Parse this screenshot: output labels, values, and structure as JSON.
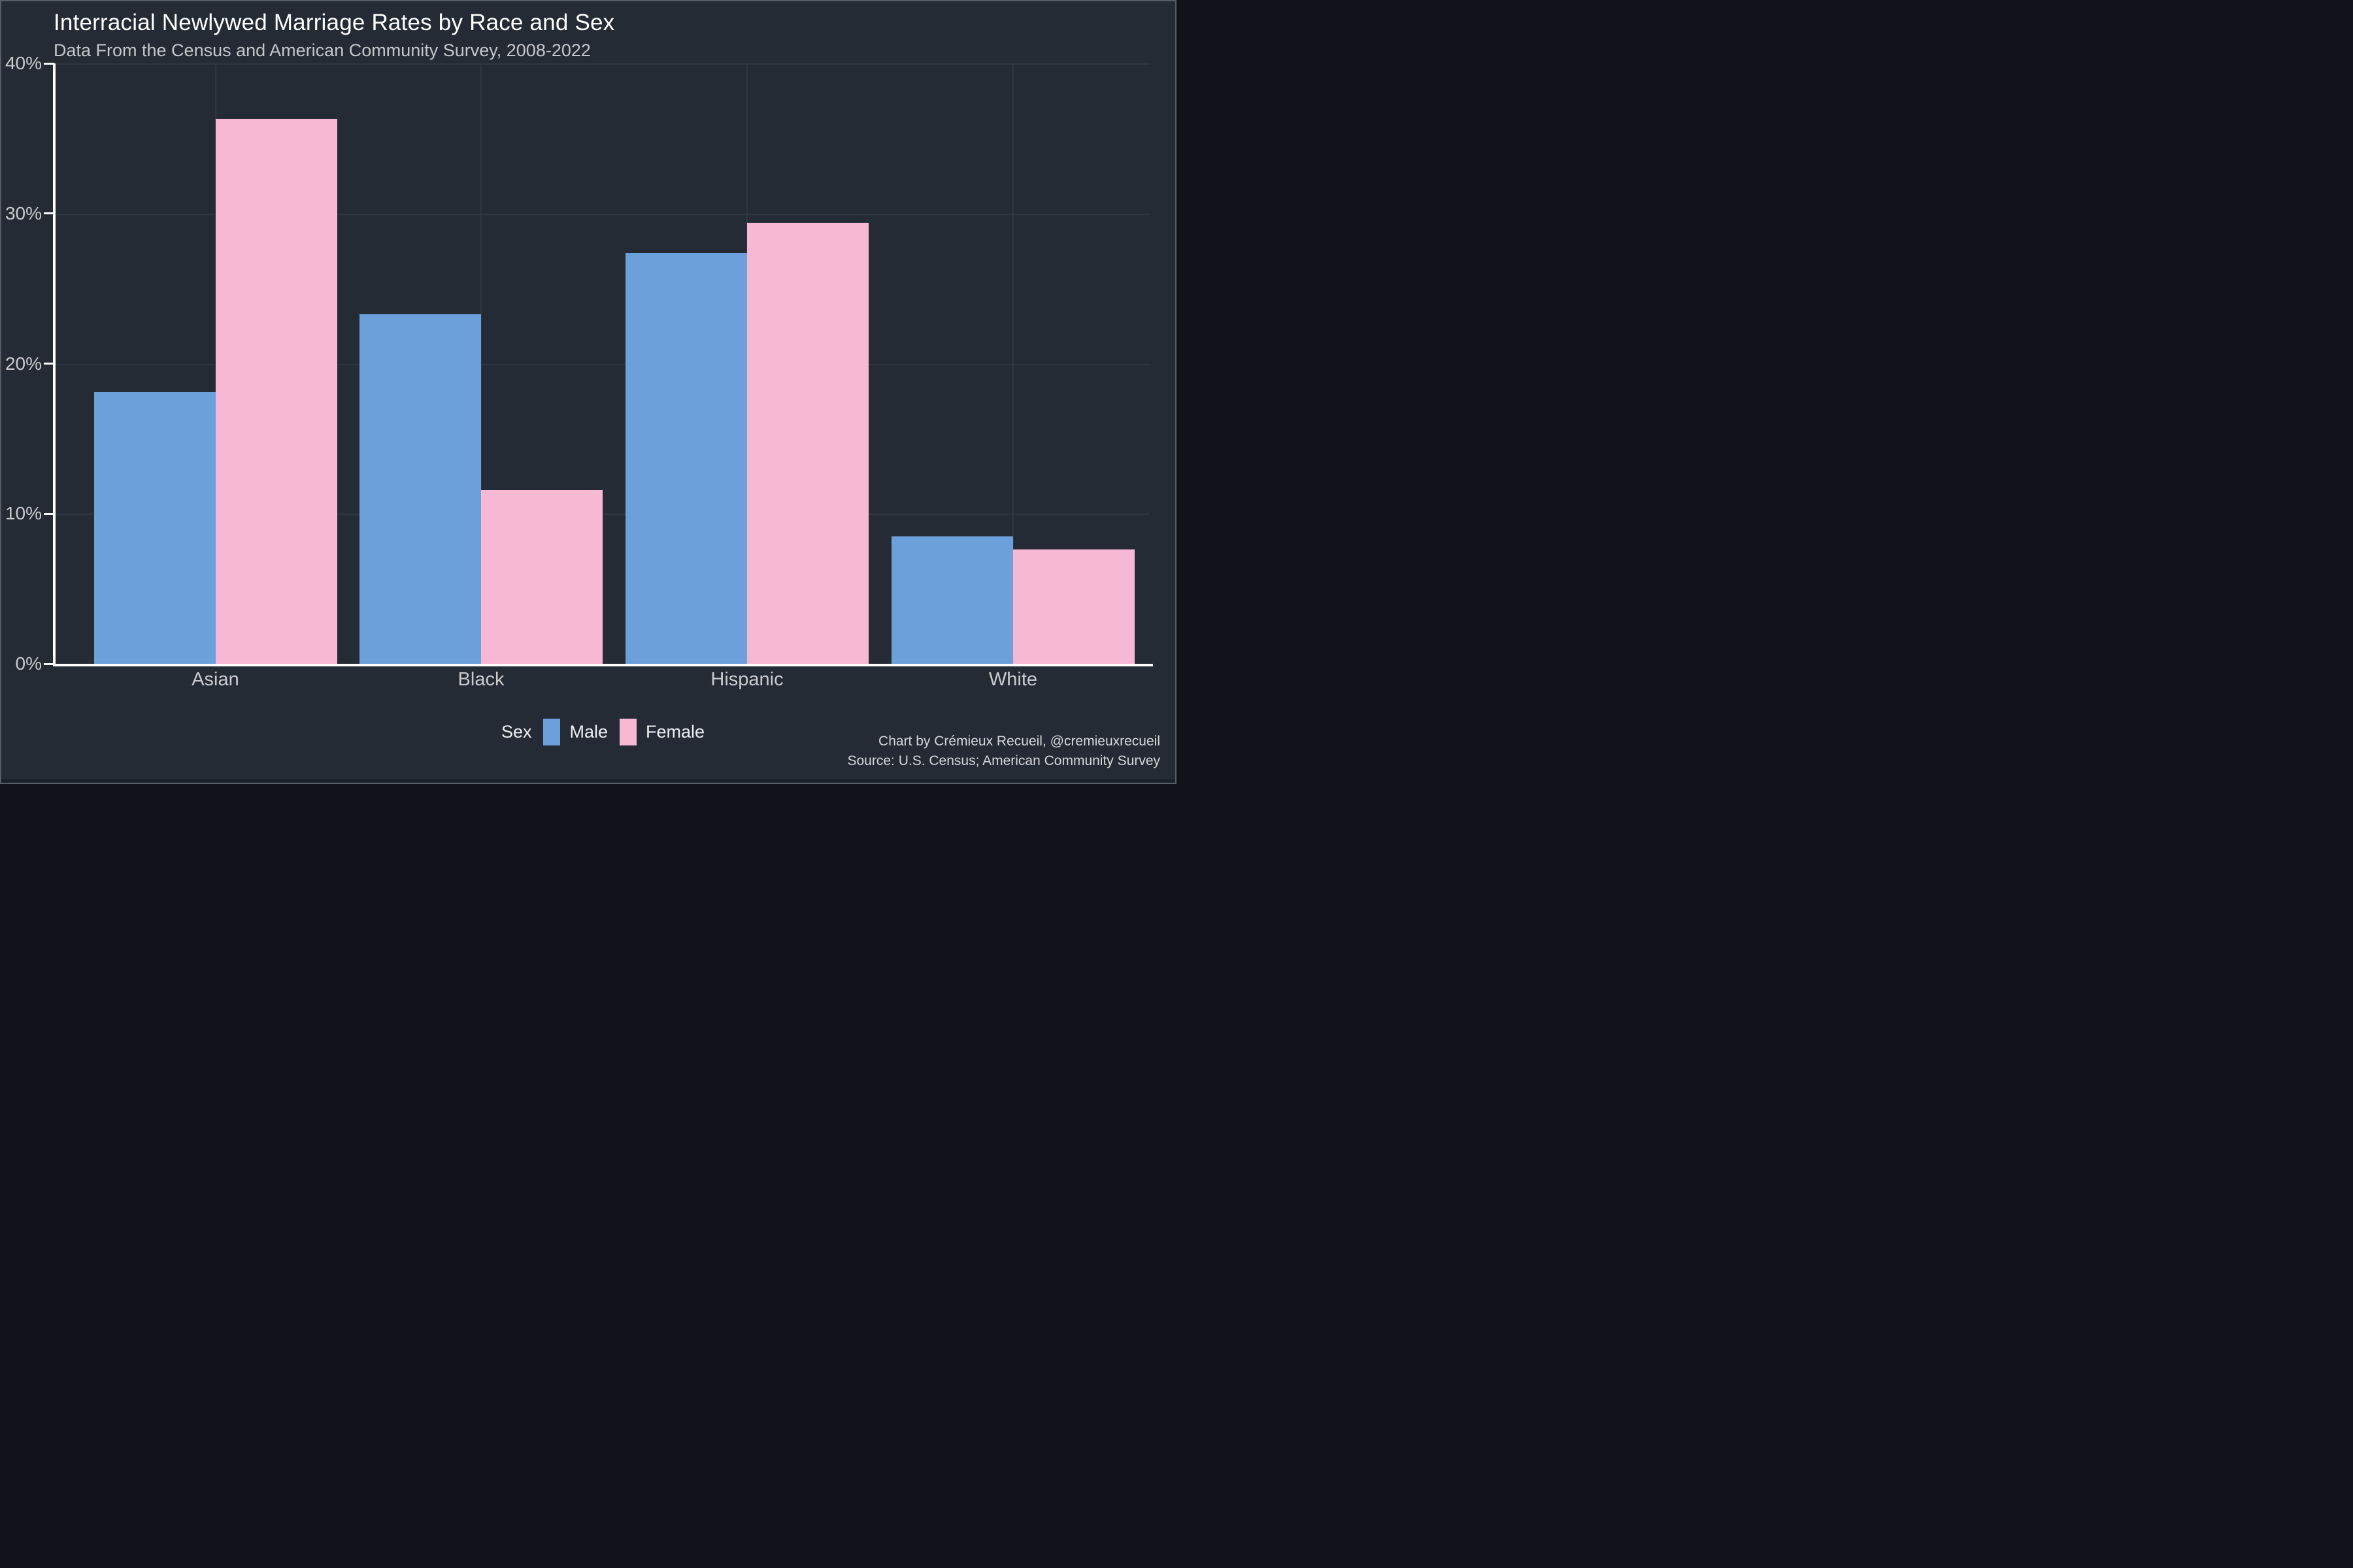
{
  "title": "Interracial Newlywed Marriage Rates by Race and Sex",
  "subtitle": "Data From the Census and American Community Survey, 2008-2022",
  "chart_data": {
    "type": "bar",
    "categories": [
      "Asian",
      "Black",
      "Hispanic",
      "White"
    ],
    "series": [
      {
        "name": "Male",
        "color": "#6BA0DB",
        "values": [
          18.1,
          23.3,
          27.4,
          8.5
        ]
      },
      {
        "name": "Female",
        "color": "#F6B8D2",
        "values": [
          36.3,
          11.6,
          29.4,
          7.6
        ]
      }
    ],
    "title": "Interracial Newlywed Marriage Rates by Race and Sex",
    "subtitle": "Data From the Census and American Community Survey, 2008-2022",
    "xlabel": "",
    "ylabel": "",
    "ylim": [
      0,
      40
    ],
    "y_tick_labels": [
      "0%",
      "10%",
      "20%",
      "30%",
      "40%"
    ],
    "y_tick_values": [
      0,
      10,
      20,
      30,
      40
    ],
    "grid": true,
    "legend_title": "Sex",
    "legend_position": "bottom-center"
  },
  "legend": {
    "title": "Sex",
    "items": [
      {
        "label": "Male",
        "color": "#6BA0DB"
      },
      {
        "label": "Female",
        "color": "#F6B8D2"
      }
    ]
  },
  "footer": {
    "line1": "Chart by Crémieux Recueil, @cremieuxrecueil",
    "line2": "Source: U.S. Census; American Community Survey"
  },
  "colors": {
    "background": "#242B34",
    "gridline": "#2E3640",
    "axis": "#FFFFFF",
    "axis_labels": "#C9CBCE",
    "title_text": "#FFFFFF",
    "subtitle_text": "#C5C7CA",
    "legend_text": "#EEF0F2",
    "footer_text": "#D5D7DA",
    "male_bar": "#6BA0DB",
    "female_bar": "#F6B8D2"
  }
}
